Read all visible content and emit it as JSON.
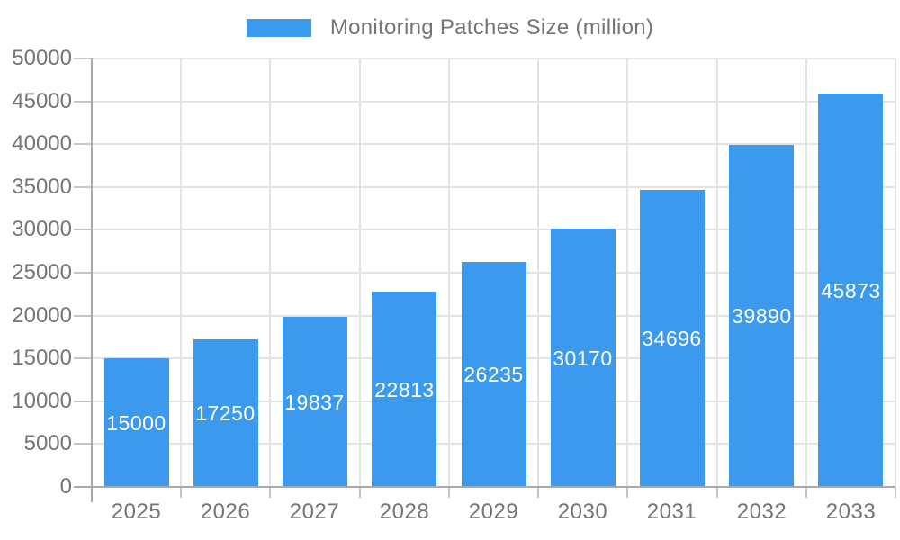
{
  "chart_data": {
    "type": "bar",
    "title": "Monitoring Patches Size (million)",
    "series_name": "Monitoring Patches Size (million)",
    "categories": [
      "2025",
      "2026",
      "2027",
      "2028",
      "2029",
      "2030",
      "2031",
      "2032",
      "2033"
    ],
    "values": [
      15000,
      17250,
      19837,
      22813,
      26235,
      30170,
      34696,
      39890,
      45873
    ],
    "value_labels": [
      "15000",
      "17250",
      "19837",
      "22813",
      "26235",
      "30170",
      "34696",
      "39890",
      "45873"
    ],
    "xlabel": "",
    "ylabel": "",
    "ylim": [
      0,
      50000
    ],
    "y_ticks": [
      0,
      5000,
      10000,
      15000,
      20000,
      25000,
      30000,
      35000,
      40000,
      45000,
      50000
    ],
    "grid": true,
    "legend_position": "top-center",
    "colors": {
      "bar": "#3B99EE",
      "value_label": "#FFFFFF",
      "axis_text": "#757575",
      "grid_line": "#E3E3E3",
      "axis_line": "#A9A9A9",
      "tick": "#C4C4C4",
      "background": "#FFFFFF"
    }
  }
}
